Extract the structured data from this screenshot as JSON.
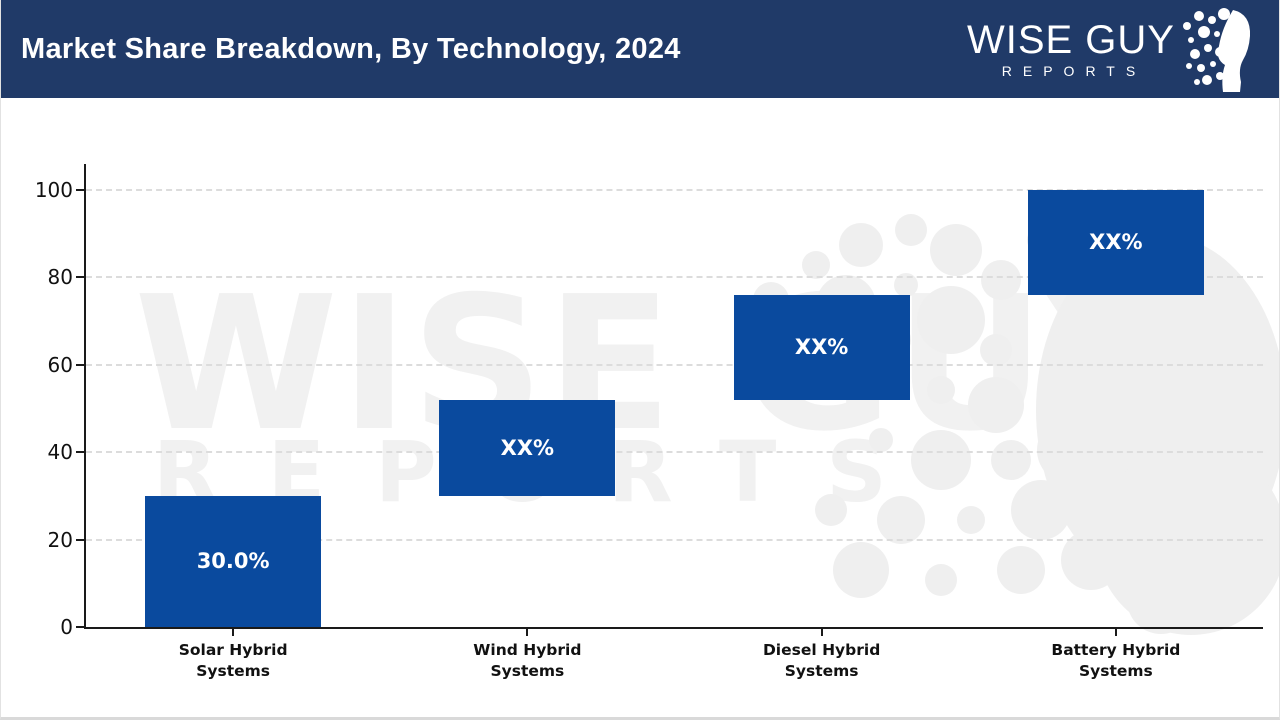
{
  "header": {
    "title": "Market Share Breakdown, By Technology, 2024",
    "logo": {
      "primary": "WISE GUY",
      "secondary": "REPORTS"
    }
  },
  "watermark": {
    "primary": "WISE GUY",
    "secondary": "REPORTS"
  },
  "chart_data": {
    "type": "bar",
    "variant": "waterfall",
    "title": "Market Share Breakdown, By Technology, 2024",
    "categories": [
      "Solar Hybrid Systems",
      "Wind Hybrid Systems",
      "Diesel Hybrid Systems",
      "Battery Hybrid Systems"
    ],
    "series": [
      {
        "category": "Solar Hybrid Systems",
        "start": 0,
        "end": 30,
        "value": 30,
        "label": "30.0%"
      },
      {
        "category": "Wind Hybrid Systems",
        "start": 30,
        "end": 52,
        "value": 22,
        "label": "XX%"
      },
      {
        "category": "Diesel Hybrid Systems",
        "start": 52,
        "end": 76,
        "value": 24,
        "label": "XX%"
      },
      {
        "category": "Battery Hybrid Systems",
        "start": 76,
        "end": 100,
        "value": 24,
        "label": "XX%"
      }
    ],
    "xlabel": "",
    "ylabel": "",
    "ylim": [
      0,
      106
    ],
    "yticks": [
      0,
      20,
      40,
      60,
      80,
      100
    ],
    "grid": {
      "horizontal": true,
      "style": "dashed"
    },
    "legend": "none",
    "colors": {
      "bar": "#0a4a9e",
      "bar_label": "#ffffff",
      "grid": "#dcdcdc",
      "axis": "#1a1a1a",
      "header_bg": "#203a68",
      "watermark": "#f1f1f1"
    }
  }
}
